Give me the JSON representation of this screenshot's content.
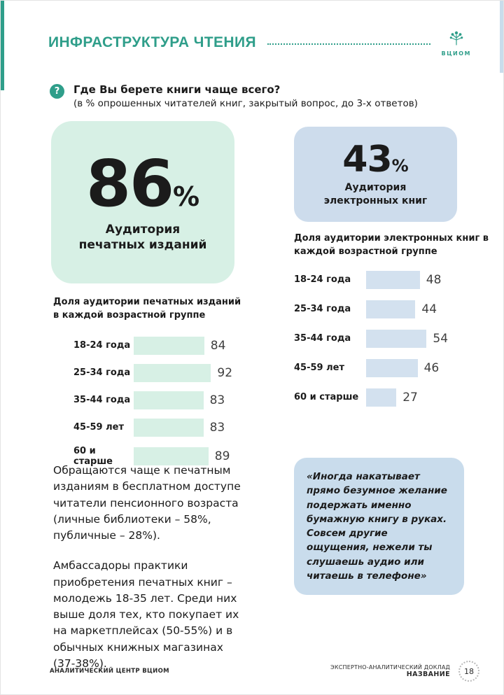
{
  "header": {
    "title": "ИНФРАСТРУКТУРА ЧТЕНИЯ",
    "logo_text": "ВЦИОМ"
  },
  "question": {
    "icon_glyph": "?",
    "text": "Где Вы берете книги чаще всего?",
    "note": "(в % опрошенных читателей книг, закрытый вопрос, до 3-х ответов)"
  },
  "print_audience": {
    "value": "86",
    "unit": "%",
    "label": "Аудитория печатных изданий"
  },
  "ebook_audience": {
    "value": "43",
    "unit": "%",
    "label": "Аудитория электронных книг"
  },
  "chart_data": [
    {
      "type": "bar",
      "orientation": "horizontal",
      "title": "Доля аудитории печатных изданий в каждой возрастной группе",
      "categories": [
        "18-24 года",
        "25-34 года",
        "35-44 года",
        "45-59 лет",
        "60 и старше"
      ],
      "values": [
        84,
        92,
        83,
        83,
        89
      ],
      "unit": "%",
      "xlim": [
        0,
        100
      ],
      "bar_color": "#d7f0e5"
    },
    {
      "type": "bar",
      "orientation": "horizontal",
      "title": "Доля аудитории электронных книг в каждой возрастной группе",
      "categories": [
        "18-24 года",
        "25-34 года",
        "35-44 года",
        "45-59 лет",
        "60 и старше"
      ],
      "values": [
        48,
        44,
        54,
        46,
        27
      ],
      "unit": "%",
      "xlim": [
        0,
        100
      ],
      "bar_color": "#d3e1ef"
    }
  ],
  "insights": {
    "p1": "Обращаются чаще к печатным изданиям в бесплатном доступе читатели пенсионного возраста (личные библиотеки – 58%, публичные – 28%).",
    "p2": "Амбассадоры практики приобретения печатных книг – молодежь 18-35 лет. Среди них выше доля тех, кто покупает их на маркетплейсах (50-55%) и в обычных книжных магазинах (37-38%)."
  },
  "quote": "«Иногда накатывает прямо безумное желание подержать именно бумажную книгу в руках. Совсем другие ощущения, нежели ты слушаешь аудио или читаешь в телефоне»",
  "footer": {
    "left": "АНАЛИТИЧЕСКИЙ ЦЕНТР ВЦИОМ",
    "right_line1": "ЭКСПЕРТНО-АНАЛИТИЧЕСКИЙ ДОКЛАД",
    "right_line2": "НАЗВАНИЕ",
    "page": "18"
  },
  "colors": {
    "teal": "#2f9e8a",
    "mint": "#d7f0e5",
    "blue_card": "#cddcec",
    "blue_bar": "#d3e1ef"
  }
}
